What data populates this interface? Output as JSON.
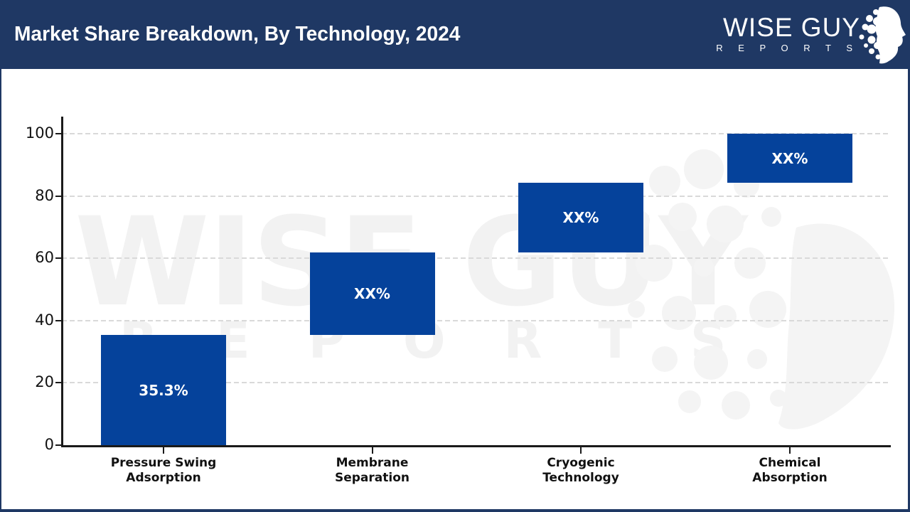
{
  "header": {
    "title": "Market Share Breakdown, By Technology, 2024",
    "logo": {
      "line1": "WISE GUY",
      "line2": "R E P O R T S",
      "head_icon": "head-profile-dots"
    }
  },
  "watermark": {
    "line1": "WISE GUY",
    "line2": "REPORTS"
  },
  "colors": {
    "header_bg": "#1f3864",
    "bar": "#05429b",
    "grid": "#d9d9d9",
    "axis": "#1a1a1a",
    "watermark": "#f2f2f2",
    "bar_label_text": "#ffffff"
  },
  "chart_data": {
    "type": "bar",
    "variant": "floating-waterfall",
    "title": "Market Share Breakdown, By Technology, 2024",
    "categories": [
      "Pressure Swing Adsorption",
      "Membrane Separation",
      "Cryogenic Technology",
      "Chemical Absorption"
    ],
    "categories_lines": [
      [
        "Pressure Swing",
        "Adsorption"
      ],
      [
        "Membrane",
        "Separation"
      ],
      [
        "Cryogenic",
        "Technology"
      ],
      [
        "Chemical",
        "Absorption"
      ]
    ],
    "segments": [
      {
        "category": "Pressure Swing Adsorption",
        "start": 0,
        "end": 35.3,
        "label": "35.3%"
      },
      {
        "category": "Membrane Separation",
        "start": 35.3,
        "end": 61.8,
        "label": "XX%"
      },
      {
        "category": "Cryogenic Technology",
        "start": 61.8,
        "end": 84.2,
        "label": "XX%"
      },
      {
        "category": "Chemical Absorption",
        "start": 84.2,
        "end": 100,
        "label": "XX%"
      }
    ],
    "yticks": [
      0,
      20,
      40,
      60,
      80,
      100
    ],
    "ylim": [
      0,
      105.5
    ],
    "xlabel": "",
    "ylabel": "",
    "grid": "horizontal-dashed",
    "legend": "none"
  }
}
